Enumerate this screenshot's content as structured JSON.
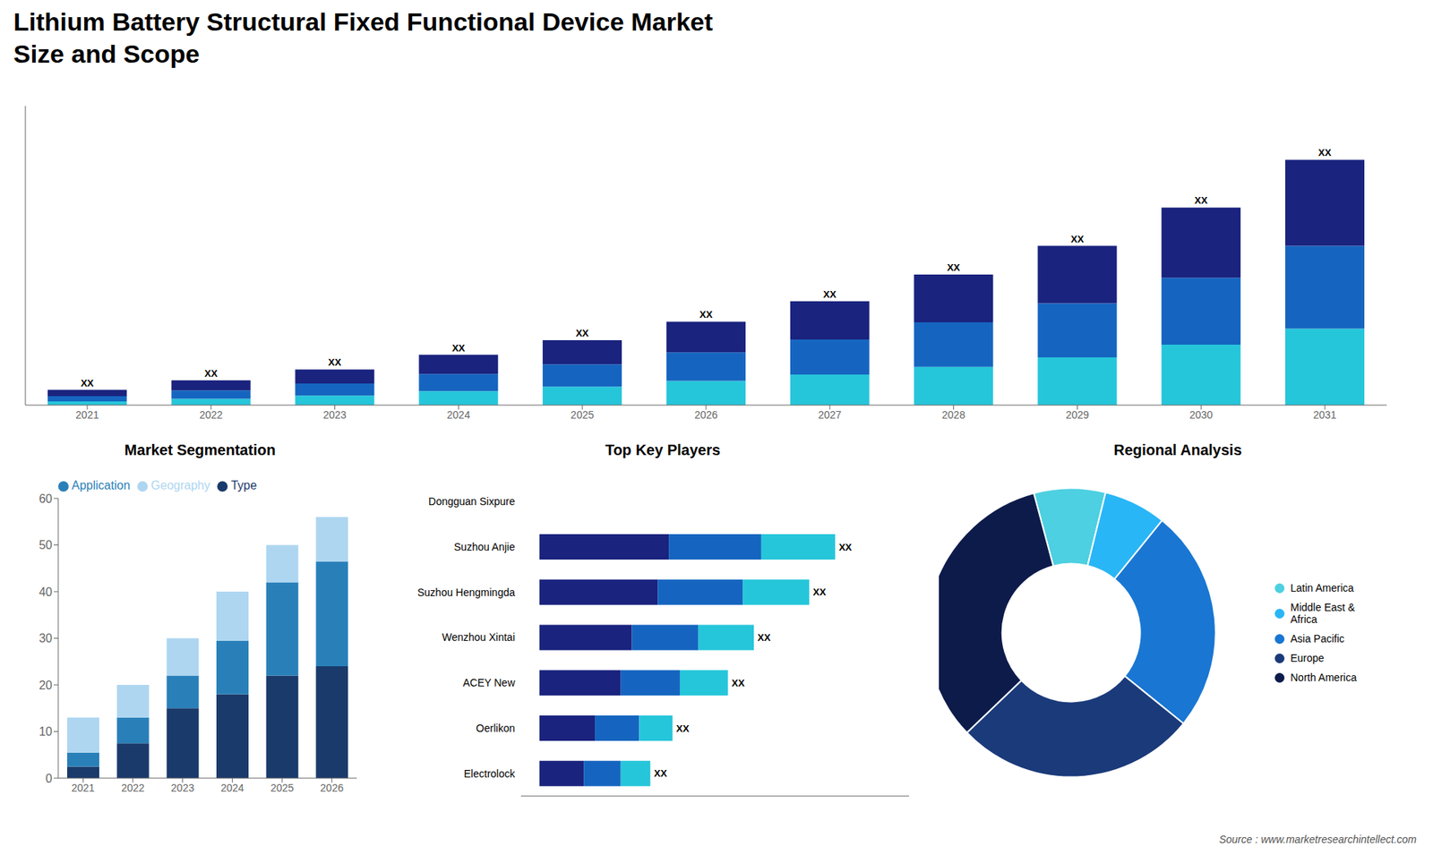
{
  "title": "Lithium Battery Structural Fixed Functional Device Market\nSize and Scope",
  "annotations": [
    "Source : www.marketresearchintellect.com"
  ],
  "chart_data": [
    {
      "type": "bar",
      "stacked": true,
      "categories": [
        "2021",
        "2022",
        "2023",
        "2024",
        "2025",
        "2026",
        "2027",
        "2028",
        "2029",
        "2030",
        "2031"
      ],
      "series": [
        {
          "color": "#26c6da",
          "values": [
            0.6,
            1.0,
            1.5,
            2.2,
            2.9,
            3.8,
            4.8,
            6.0,
            7.5,
            9.5,
            12.0
          ]
        },
        {
          "color": "#1565c0",
          "values": [
            0.8,
            1.3,
            1.9,
            2.7,
            3.5,
            4.5,
            5.5,
            7.0,
            8.5,
            10.5,
            13.0
          ]
        },
        {
          "color": "#1a237e",
          "values": [
            1.0,
            1.6,
            2.2,
            3.0,
            3.8,
            4.8,
            6.0,
            7.5,
            9.0,
            11.0,
            13.5
          ]
        }
      ],
      "ylim": [
        0,
        46.97
      ],
      "tick_labels": "x",
      "annotations": [
        "XX",
        "XX",
        "XX",
        "XX",
        "XX",
        "XX",
        "XX",
        "XX",
        "XX",
        "XX",
        "XX"
      ]
    },
    {
      "type": "bar",
      "stacked": true,
      "title": "Market Segmentation",
      "categories": [
        "2021",
        "2022",
        "2023",
        "2024",
        "2025",
        "2026"
      ],
      "series": [
        {
          "name": "Type",
          "color": "#1a3a6b",
          "values": [
            2.5,
            7.5,
            15.0,
            18.0,
            22.0,
            24.0
          ]
        },
        {
          "name": "Application",
          "color": "#2980b9",
          "values": [
            3.0,
            5.5,
            7.0,
            11.5,
            20.0,
            22.5
          ]
        },
        {
          "name": "Geography",
          "color": "#aed6f1",
          "values": [
            7.5,
            7.0,
            8.0,
            10.5,
            8.0,
            9.5
          ]
        }
      ],
      "ylim": [
        0,
        60
      ],
      "yticks": [
        0,
        10,
        20,
        30,
        40,
        50,
        60
      ],
      "legend": "upper left"
    },
    {
      "type": "bar",
      "stacked": true,
      "orientation": "horizontal",
      "title": "Top Key Players",
      "categories": [
        "Dongguan Sixpure",
        "Suzhou Anjie",
        "Suzhou Hengmingda",
        "Wenzhou Xintai",
        "ACEY New",
        "Oerlikon",
        "Electrolock"
      ],
      "series": [
        {
          "color": "#1a237e",
          "values": [
            0.0,
            3.5,
            3.2,
            2.5,
            2.2,
            1.5,
            1.2
          ]
        },
        {
          "color": "#1565c0",
          "values": [
            0.0,
            2.5,
            2.3,
            1.8,
            1.6,
            1.2,
            1.0
          ]
        },
        {
          "color": "#26c6da",
          "values": [
            0.0,
            2.0,
            1.8,
            1.5,
            1.3,
            0.9,
            0.8
          ]
        }
      ],
      "xlim": [
        -0.5,
        10
      ],
      "tick_labels": "y",
      "annotations": [
        null,
        "XX",
        "XX",
        "XX",
        "XX",
        "XX",
        "XX"
      ]
    },
    {
      "type": "pie",
      "title": "Regional Analysis",
      "categories": [
        "Latin America",
        "Middle East &\nAfrica",
        "Asia Pacific",
        "Europe",
        "North America"
      ],
      "values": [
        8,
        7,
        25,
        27,
        33
      ],
      "colors": [
        "#4dd0e1",
        "#29b6f6",
        "#1976d2",
        "#1a3a7a",
        "#0d1b4b"
      ],
      "legend": "right"
    }
  ]
}
